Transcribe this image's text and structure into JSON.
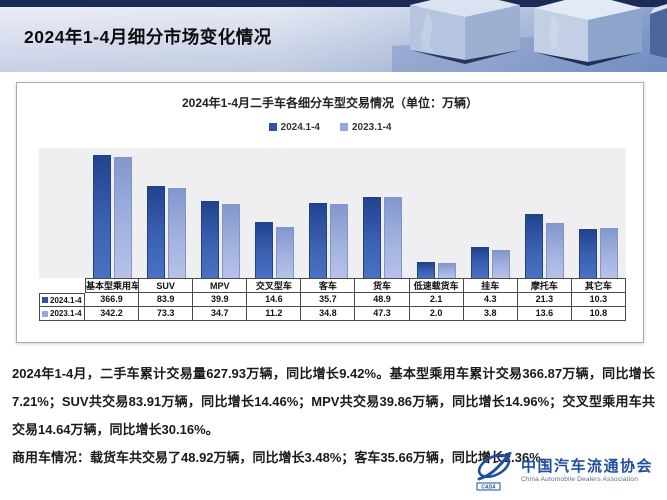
{
  "header": {
    "title": "2024年1-4月细分市场变化情况"
  },
  "chart_data": {
    "type": "bar",
    "title": "2024年1-4月二手车各细分车型交易情况（单位：万辆）",
    "unit": "万辆",
    "y_axis": {
      "scale": "log10",
      "min": 1,
      "grid": false
    },
    "legend_position": "top-center",
    "categories": [
      "基本型乘用车",
      "SUV",
      "MPV",
      "交叉型车",
      "客车",
      "货车",
      "低速载货车",
      "挂车",
      "摩托车",
      "其它车"
    ],
    "series": [
      {
        "name": "2024.1-4",
        "color": "#2e55a5",
        "values": [
          366.9,
          83.9,
          39.9,
          14.6,
          35.7,
          48.9,
          2.1,
          4.3,
          21.3,
          10.3
        ]
      },
      {
        "name": "2023.1-4",
        "color": "#95a7da",
        "values": [
          342.2,
          73.3,
          34.7,
          11.2,
          34.8,
          47.3,
          2.0,
          3.8,
          13.6,
          10.8
        ]
      }
    ]
  },
  "summary": {
    "para1": "2024年1-4月，二手车累计交易量627.93万辆，同比增长9.42%。基本型乘用车累计交易366.87万辆，同比增长7.21%；SUV共交易83.91万辆，同比增长14.46%；MPV共交易39.86万辆，同比增长14.96%；交叉型乘用车共交易14.64万辆，同比增长30.16%。",
    "para2": "商用车情况：载货车共交易了48.92万辆，同比增长3.48%；客车35.66万辆，同比增长2.36%。"
  },
  "footer": {
    "org_cn": "中国汽车流通协会",
    "org_en": "China Automobile Dealers Association",
    "logo_text": "CADA"
  },
  "colors": {
    "series_2024": "#2e55a5",
    "series_2023": "#95a7da",
    "top_strip": "#1b2b55",
    "plot_background": "#efeff1",
    "logo_blue": "#1f4f9e"
  }
}
